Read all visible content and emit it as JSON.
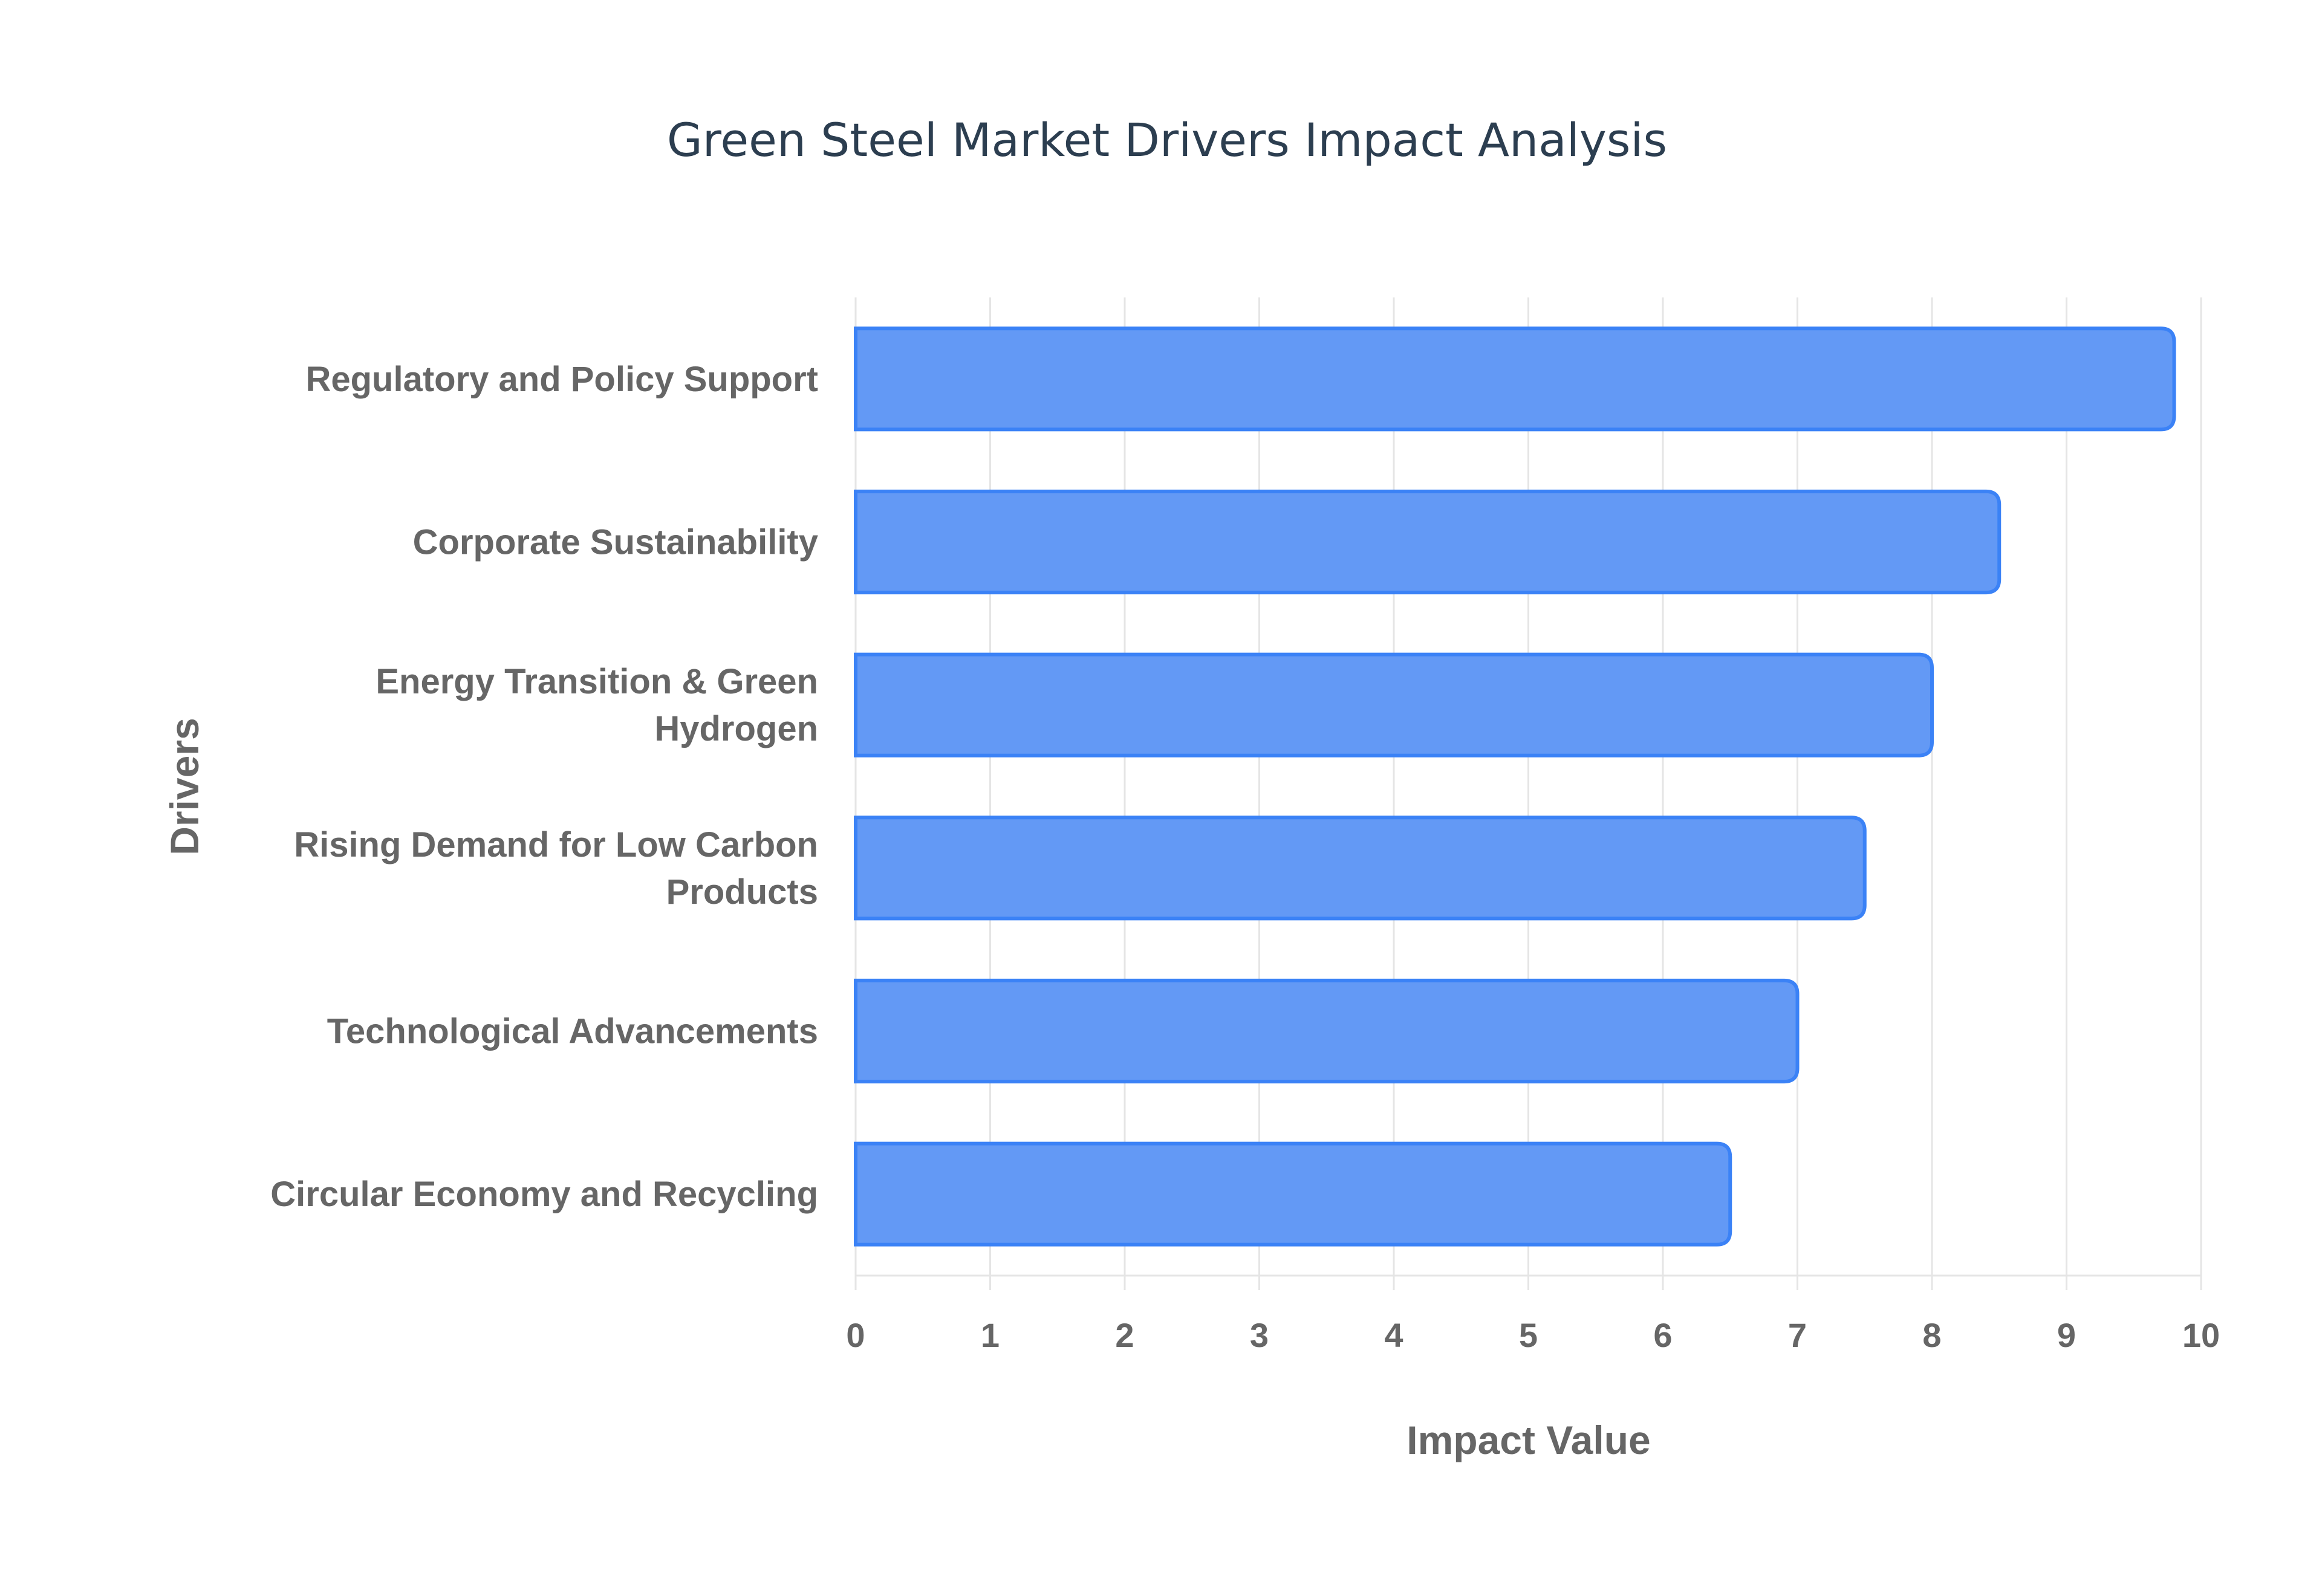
{
  "chart_data": {
    "type": "bar",
    "orientation": "horizontal",
    "title": "Green Steel Market Drivers Impact Analysis",
    "xlabel": "Impact Value",
    "ylabel": "Drivers",
    "xlim": [
      0,
      10
    ],
    "xticks": [
      "0",
      "1",
      "2",
      "3",
      "4",
      "5",
      "6",
      "7",
      "8",
      "9",
      "10"
    ],
    "grid": true,
    "legend": "none",
    "categories": [
      [
        "Regulatory and Policy Support"
      ],
      [
        "Corporate Sustainability"
      ],
      [
        "Energy Transition & Green",
        "Hydrogen"
      ],
      [
        "Rising Demand for Low Carbon",
        "Products"
      ],
      [
        "Technological Advancements"
      ],
      [
        "Circular Economy and Recycling"
      ]
    ],
    "values": [
      9.8,
      8.5,
      8.0,
      7.5,
      7.0,
      6.5
    ],
    "colors": {
      "bar_fill": "#6399f5",
      "bar_border": "#3b82f6",
      "grid": "#e5e5e5",
      "text": "#666666",
      "title": "#2c3e50"
    }
  }
}
